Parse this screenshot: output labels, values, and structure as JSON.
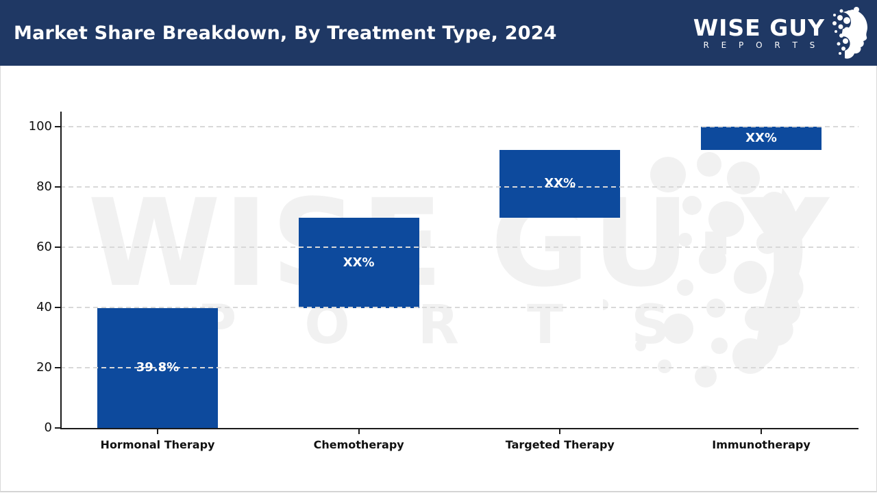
{
  "header": {
    "title": "Market Share Breakdown, By Treatment Type, 2024",
    "bg_color": "#1F3864",
    "logo_line1": "WISE GUY",
    "logo_line2": "R E P O R T S"
  },
  "watermark": {
    "line1": "WISE GU·Y",
    "line2": "P O R T S"
  },
  "chart_data": {
    "type": "bar",
    "subtype": "waterfall",
    "title": "Market Share Breakdown, By Treatment Type, 2024",
    "categories": [
      "Hormonal Therapy",
      "Chemotherapy",
      "Targeted Therapy",
      "Immunotherapy"
    ],
    "segments": [
      {
        "category": "Hormonal Therapy",
        "start": 0,
        "end": 39.8,
        "label": "39.8%"
      },
      {
        "category": "Chemotherapy",
        "start": 39.8,
        "end": 69.8,
        "label": "XX%"
      },
      {
        "category": "Targeted Therapy",
        "start": 69.8,
        "end": 92.3,
        "label": "XX%"
      },
      {
        "category": "Immunotherapy",
        "start": 92.3,
        "end": 100,
        "label": "XX%"
      }
    ],
    "ylim": [
      0,
      100
    ],
    "yticks": [
      0,
      20,
      40,
      60,
      80,
      100
    ],
    "xlabel": "",
    "ylabel": "",
    "grid": "horizontal-dashed",
    "legend": "none",
    "bar_color": "#0D4A9D",
    "bar_label_color": "#FFFFFF",
    "axis_color": "#1A1A1A",
    "gridline_color": "#D9D9D9"
  }
}
